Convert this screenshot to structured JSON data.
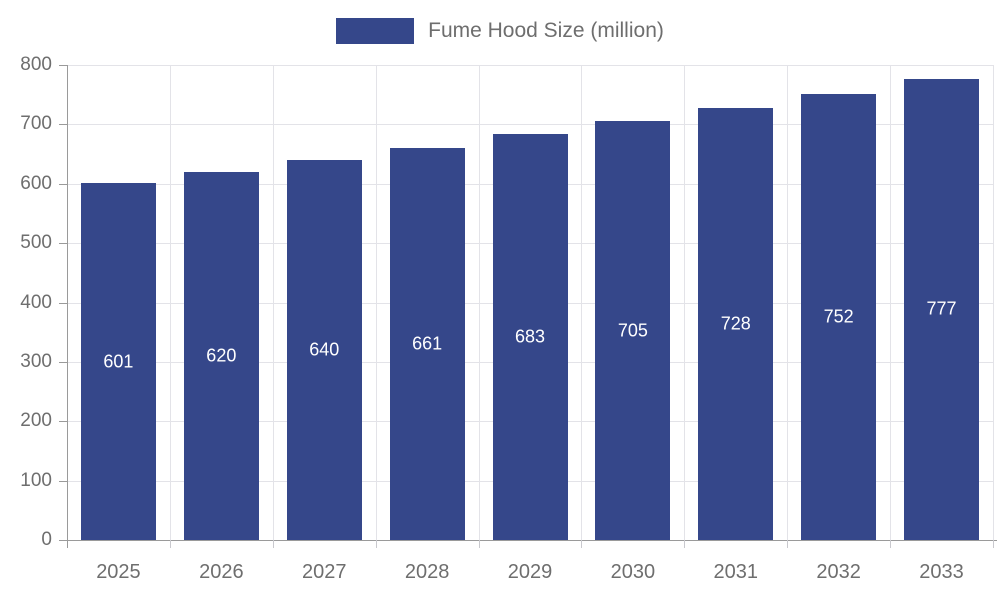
{
  "chart_data": {
    "type": "bar",
    "title": "",
    "series_name": "Fume Hood Size (million)",
    "categories": [
      "2025",
      "2026",
      "2027",
      "2028",
      "2029",
      "2030",
      "2031",
      "2032",
      "2033"
    ],
    "values": [
      601,
      620,
      640,
      661,
      683,
      705,
      728,
      752,
      777
    ],
    "value_labels": [
      "601",
      "620",
      "640",
      "661",
      "683",
      "705",
      "728",
      "752",
      "777"
    ],
    "y_tick_labels": [
      "0",
      "100",
      "200",
      "300",
      "400",
      "500",
      "600",
      "700",
      "800"
    ],
    "ylim": [
      0,
      800
    ],
    "ytick_step": 100,
    "xlabel": "",
    "ylabel": "",
    "grid": "on",
    "legend_position": "top-center",
    "colors": {
      "bar_fill": "#35478A",
      "value_label_text": "#ffffff",
      "axis_text": "#6e6e6e",
      "axis_line": "#9a9a9a",
      "gridline": "#e3e3e8",
      "boundary_tick": "#c9c9ce",
      "background": "#ffffff"
    }
  }
}
